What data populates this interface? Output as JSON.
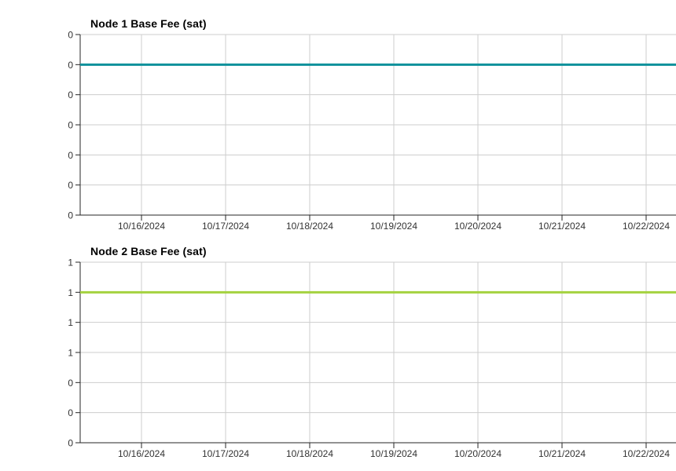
{
  "page": {
    "background_color": "#ffffff",
    "grid_color": "#cdcdcd",
    "axis_color": "#262626",
    "tick_label_color": "#333333"
  },
  "chart_data": [
    {
      "type": "line",
      "title": "Node 1 Base Fee (sat)",
      "x": [
        "10/16/2024",
        "10/17/2024",
        "10/18/2024",
        "10/19/2024",
        "10/20/2024",
        "10/21/2024",
        "10/22/2024"
      ],
      "series": [
        {
          "name": "Node 1 Base Fee",
          "values": [
            0,
            0,
            0,
            0,
            0,
            0,
            0
          ]
        }
      ],
      "xlabel": "",
      "ylabel": "",
      "y_tick_labels": [
        "0",
        "0",
        "0",
        "0",
        "0",
        "0",
        "0"
      ],
      "line_y_tick_index": 1,
      "line_color": "#0f919b",
      "grid_color": "#cdcdcd",
      "axis_color": "#262626",
      "grid": true,
      "legend": false
    },
    {
      "type": "line",
      "title": "Node 2 Base Fee (sat)",
      "x": [
        "10/16/2024",
        "10/17/2024",
        "10/18/2024",
        "10/19/2024",
        "10/20/2024",
        "10/21/2024",
        "10/22/2024"
      ],
      "series": [
        {
          "name": "Node 2 Base Fee",
          "values": [
            1,
            1,
            1,
            1,
            1,
            1,
            1
          ]
        }
      ],
      "xlabel": "",
      "ylabel": "",
      "y_tick_labels": [
        "1",
        "1",
        "1",
        "1",
        "0",
        "0",
        "0"
      ],
      "line_y_tick_index": 1,
      "line_color": "#a4d23f",
      "grid_color": "#cdcdcd",
      "axis_color": "#262626",
      "grid": true,
      "legend": false
    }
  ]
}
